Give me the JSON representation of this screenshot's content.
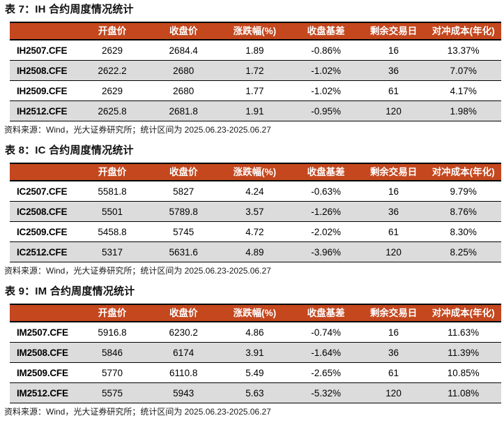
{
  "accent_color": "#C4471E",
  "stripe_color": "#DCDCDC",
  "columns": [
    "",
    "开盘价",
    "收盘价",
    "涨跌幅(%)",
    "收盘基差",
    "剩余交易日",
    "对冲成本(年化)"
  ],
  "tables": [
    {
      "title": "表 7：IH 合约周度情况统计",
      "source": "资料来源：Wind，光大证券研究所；统计区间为 2025.06.23-2025.06.27",
      "rows": [
        [
          "IH2507.CFE",
          "2629",
          "2684.4",
          "1.89",
          "-0.86%",
          "16",
          "13.37%"
        ],
        [
          "IH2508.CFE",
          "2622.2",
          "2680",
          "1.72",
          "-1.02%",
          "36",
          "7.07%"
        ],
        [
          "IH2509.CFE",
          "2629",
          "2680",
          "1.77",
          "-1.02%",
          "61",
          "4.17%"
        ],
        [
          "IH2512.CFE",
          "2625.8",
          "2681.8",
          "1.91",
          "-0.95%",
          "120",
          "1.98%"
        ]
      ]
    },
    {
      "title": "表 8：IC 合约周度情况统计",
      "source": "资料来源：Wind，光大证券研究所；统计区间为 2025.06.23-2025.06.27",
      "rows": [
        [
          "IC2507.CFE",
          "5581.8",
          "5827",
          "4.24",
          "-0.63%",
          "16",
          "9.79%"
        ],
        [
          "IC2508.CFE",
          "5501",
          "5789.8",
          "3.57",
          "-1.26%",
          "36",
          "8.76%"
        ],
        [
          "IC2509.CFE",
          "5458.8",
          "5745",
          "4.72",
          "-2.02%",
          "61",
          "8.30%"
        ],
        [
          "IC2512.CFE",
          "5317",
          "5631.6",
          "4.89",
          "-3.96%",
          "120",
          "8.25%"
        ]
      ]
    },
    {
      "title": "表 9：IM 合约周度情况统计",
      "source": "资料来源：Wind，光大证券研究所；统计区间为 2025.06.23-2025.06.27",
      "rows": [
        [
          "IM2507.CFE",
          "5916.8",
          "6230.2",
          "4.86",
          "-0.74%",
          "16",
          "11.63%"
        ],
        [
          "IM2508.CFE",
          "5846",
          "6174",
          "3.91",
          "-1.64%",
          "36",
          "11.39%"
        ],
        [
          "IM2509.CFE",
          "5770",
          "6110.8",
          "5.49",
          "-2.65%",
          "61",
          "10.85%"
        ],
        [
          "IM2512.CFE",
          "5575",
          "5943",
          "5.63",
          "-5.32%",
          "120",
          "11.08%"
        ]
      ]
    }
  ]
}
